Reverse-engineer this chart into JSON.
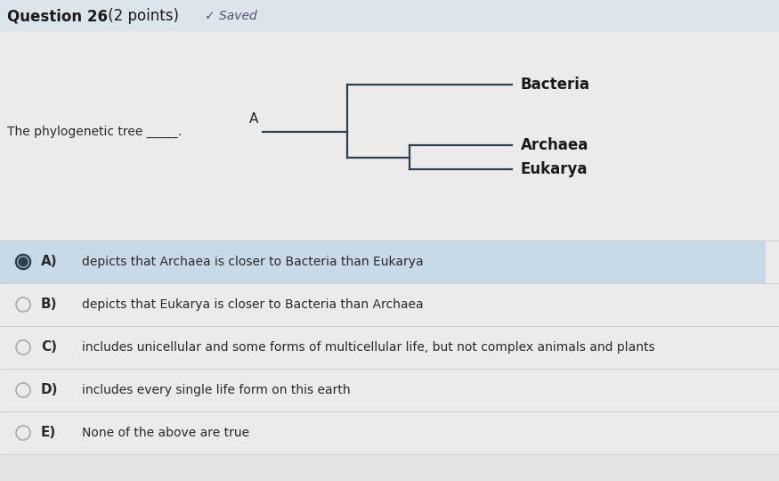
{
  "title_bold": "Question 26",
  "title_normal": " (2 points)",
  "saved_text": "✓ Saved",
  "prompt": "The phylogenetic tree _____.",
  "node_label": "A",
  "taxa": [
    "Bacteria",
    "Archaea",
    "Eukarya"
  ],
  "choices": [
    {
      "label": "A)",
      "text": "depicts that Archaea is closer to Bacteria than Eukarya",
      "selected": true
    },
    {
      "label": "B)",
      "text": "depicts that Eukarya is closer to Bacteria than Archaea",
      "selected": false
    },
    {
      "label": "C)",
      "text": "includes unicellular and some forms of multicellular life, but not complex animals and plants",
      "selected": false
    },
    {
      "label": "D)",
      "text": "includes every single life form on this earth",
      "selected": false
    },
    {
      "label": "E)",
      "text": "None of the above are true",
      "selected": false
    }
  ],
  "page_bg": "#e4e4e4",
  "header_bg": "#dde5ec",
  "content_bg": "#ebebeb",
  "selected_bg": "#c8d9e8",
  "tree_color": "#2c3e50",
  "title_color": "#1a1a1a",
  "text_color": "#2a2a2a",
  "radio_selected_outer": "#2c3e50",
  "radio_selected_inner": "#2c3e50",
  "radio_unselected_color": "#aaaaaa",
  "saved_color": "#555577",
  "separator_color": "#c8c8c8"
}
